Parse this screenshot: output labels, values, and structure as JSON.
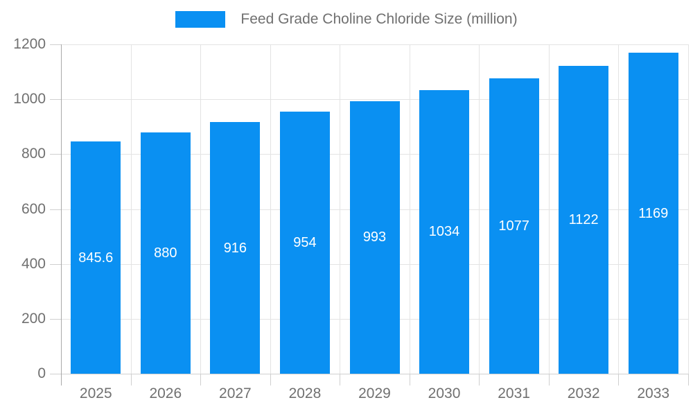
{
  "legend": {
    "label": "Feed Grade Choline Chloride Size (million)"
  },
  "colors": {
    "bar": "#0a90f2",
    "grid": "#e3e3e3",
    "axis_y": "#a8a8a8",
    "axis_x": "#cfcfcf",
    "tick": "#cfcfcf",
    "text": "#707070",
    "bar_label": "#ffffff",
    "background": "#ffffff"
  },
  "chart_data": {
    "type": "bar",
    "title": "Feed Grade Choline Chloride Size (million)",
    "categories": [
      "2025",
      "2026",
      "2027",
      "2028",
      "2029",
      "2030",
      "2031",
      "2032",
      "2033"
    ],
    "values": [
      845.6,
      880,
      916,
      954,
      993,
      1034,
      1077,
      1122,
      1169
    ],
    "value_labels": [
      "845.6",
      "880",
      "916",
      "954",
      "993",
      "1034",
      "1077",
      "1122",
      "1169"
    ],
    "xlabel": "",
    "ylabel": "",
    "ylim": [
      0,
      1200
    ],
    "yticks": [
      0,
      200,
      400,
      600,
      800,
      1000,
      1200
    ],
    "grid": true,
    "legend_position": "top-center",
    "bar_label_position": "center-inside"
  }
}
